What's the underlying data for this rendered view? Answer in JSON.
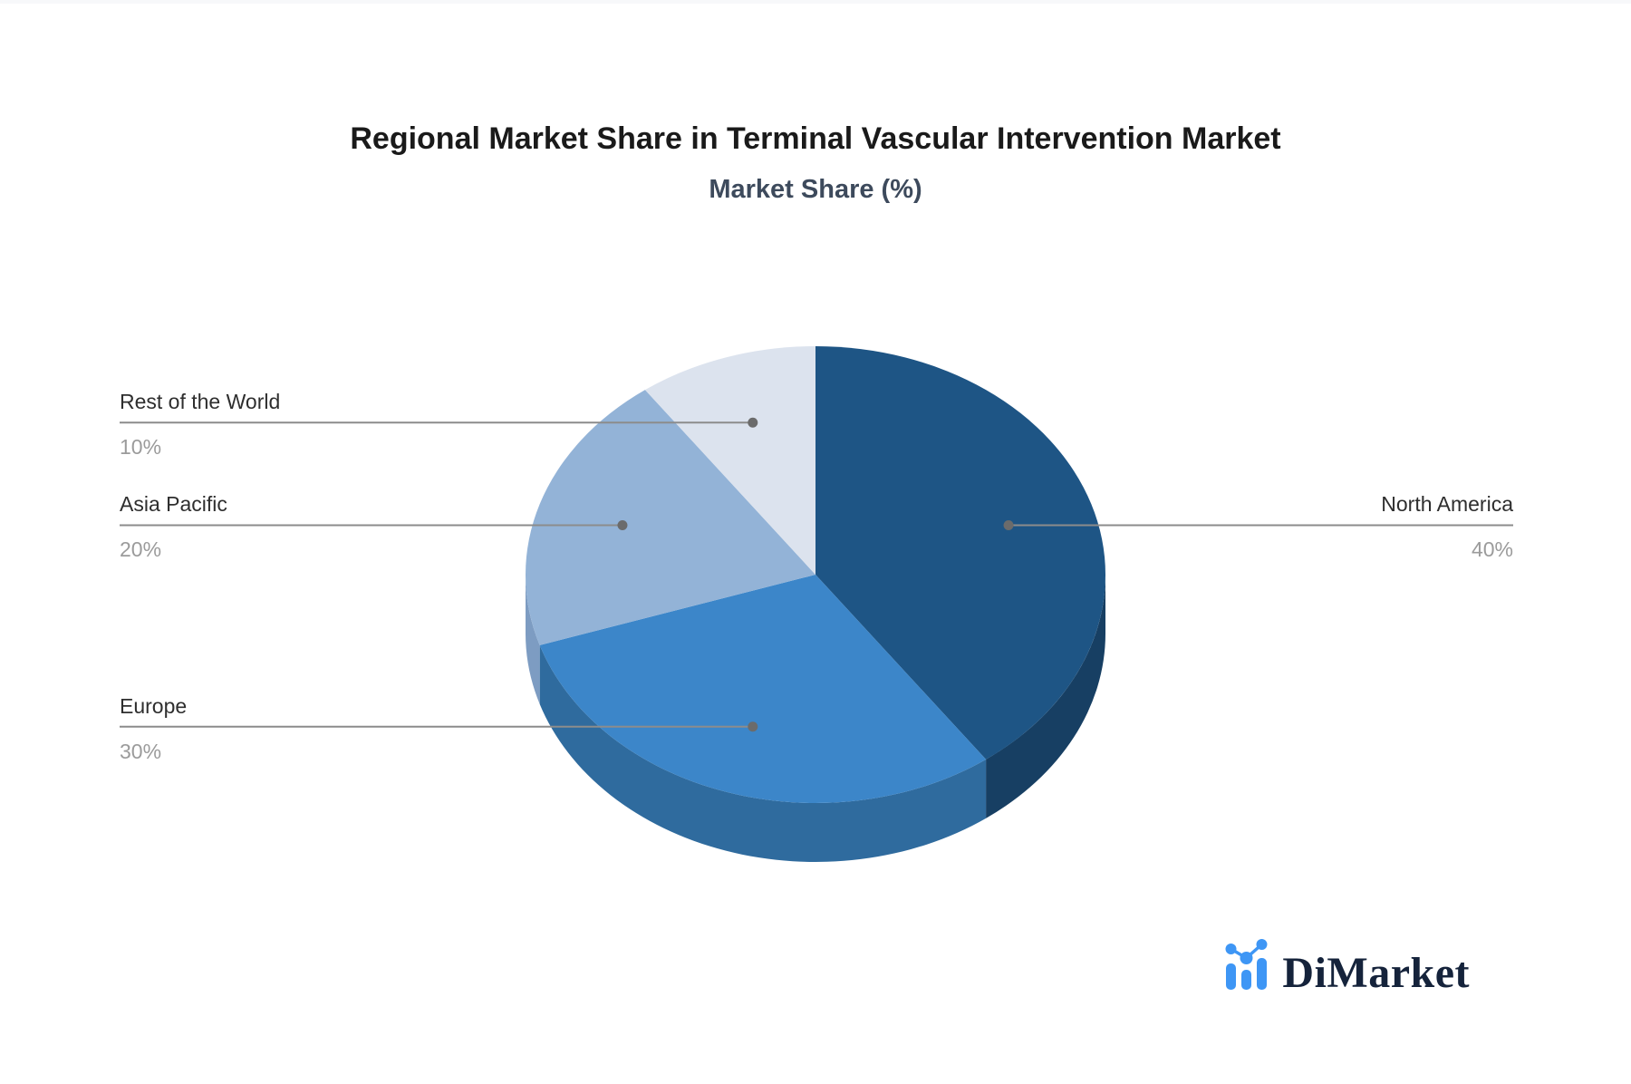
{
  "page": {
    "title": "Regional Market Share in Terminal Vascular Intervention Market",
    "subtitle": "Market Share (%)"
  },
  "chart_data": {
    "type": "pie",
    "style": "3d-pie",
    "title": "Regional Market Share in Terminal Vascular Intervention Market",
    "subtitle": "Market Share (%)",
    "unit": "%",
    "start_angle_deg": 0,
    "direction": "clockwise",
    "categories": [
      "North America",
      "Europe",
      "Asia Pacific",
      "Rest of the World"
    ],
    "values": [
      40,
      30,
      20,
      10
    ],
    "slices": [
      {
        "label": "North America",
        "value": 40,
        "value_label": "40%",
        "color": "#1E5585",
        "side_color": "#173F63",
        "label_side": "right"
      },
      {
        "label": "Europe",
        "value": 30,
        "value_label": "30%",
        "color": "#3C86C9",
        "side_color": "#2F6B9E",
        "label_side": "left"
      },
      {
        "label": "Asia Pacific",
        "value": 20,
        "value_label": "20%",
        "color": "#93B3D7",
        "side_color": "#7D9CC2",
        "label_side": "left"
      },
      {
        "label": "Rest of the World",
        "value": 10,
        "value_label": "10%",
        "color": "#DCE3EE",
        "side_color": "#B9C6D9",
        "label_side": "left"
      }
    ],
    "legend_position": "none",
    "leader_line_color": "#8C8C8C",
    "leader_dot_color": "#6B6B6B",
    "label_text_color": "#2E2E2E",
    "value_text_color": "#9B9B9B",
    "title_color": "#1A1A1A",
    "subtitle_color": "#3D4A5C",
    "background_color": "#FFFFFF"
  },
  "branding": {
    "logo_text": "DiMarket",
    "logo_text_color": "#15233B",
    "logo_accent_color": "#3E96F5"
  }
}
